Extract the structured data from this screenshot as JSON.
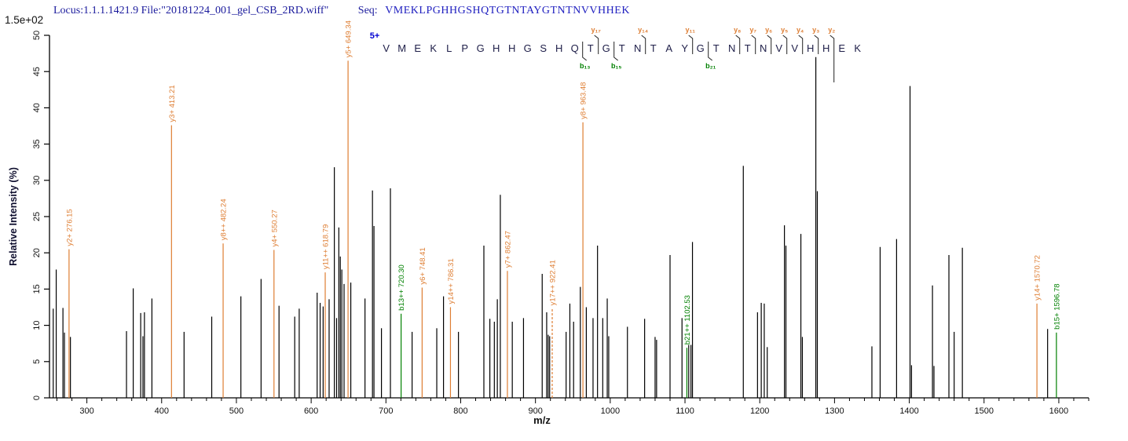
{
  "header": {
    "locus_text": "Locus:1.1.1.1421.9 File:\"20181224_001_gel_CSB_2RD.wiff\"",
    "seq_label": "Seq:",
    "seq_value": "VMEKLPGHHGSHQTGTNTAYGTNTNVVHHEK"
  },
  "chart_data": {
    "type": "bar",
    "subtype": "mass-spectrum-stick-plot",
    "title": "",
    "xlabel": "m/z",
    "ylabel": "Relative  Intensity (%)",
    "y_scale_note": "1.5e+02",
    "xlim": [
      250,
      1640
    ],
    "ylim": [
      0,
      50
    ],
    "x_tick_major_step": 100,
    "x_tick_minor_step": 20,
    "x_tick_label_start": 300,
    "x_tick_label_end": 1600,
    "y_tick_step": 5,
    "grid": false,
    "charge_state": "5+",
    "colors": {
      "y_ion": "#DE7E33",
      "b_ion": "#008000",
      "peak": "#000000",
      "axis": "#000000",
      "header_blue": "#1a1a9c",
      "seq_blue": "#2121c0",
      "charge_blue": "#0000d0",
      "residue": "#20204a"
    },
    "sequence": {
      "residues": [
        "V",
        "M",
        "E",
        "K",
        "L",
        "P",
        "G",
        "H",
        "H",
        "G",
        "S",
        "H",
        "Q",
        "T",
        "G",
        "T",
        "N",
        "T",
        "A",
        "Y",
        "G",
        "T",
        "N",
        "T",
        "N",
        "V",
        "V",
        "H",
        "H",
        "E",
        "K"
      ],
      "cuts": [
        {
          "ion": "y",
          "num": 17,
          "after": 14
        },
        {
          "ion": "y",
          "num": 14,
          "after": 17
        },
        {
          "ion": "y",
          "num": 11,
          "after": 20
        },
        {
          "ion": "y",
          "num": 8,
          "after": 23
        },
        {
          "ion": "y",
          "num": 7,
          "after": 24
        },
        {
          "ion": "y",
          "num": 6,
          "after": 25
        },
        {
          "ion": "y",
          "num": 5,
          "after": 26
        },
        {
          "ion": "y",
          "num": 4,
          "after": 27
        },
        {
          "ion": "y",
          "num": 3,
          "after": 28
        },
        {
          "ion": "y",
          "num": 2,
          "after": 29,
          "long": true
        },
        {
          "ion": "b",
          "num": 13,
          "after": 13
        },
        {
          "ion": "b",
          "num": 15,
          "after": 15
        },
        {
          "ion": "b",
          "num": 21,
          "after": 21
        }
      ]
    },
    "peaks": [
      {
        "mz": 255,
        "i": 12.3
      },
      {
        "mz": 259,
        "i": 17.7
      },
      {
        "mz": 268,
        "i": 12.4
      },
      {
        "mz": 270,
        "i": 9.0
      },
      {
        "mz": 276.15,
        "i": 20.5,
        "ion": "y",
        "label": "y2+ 276.15"
      },
      {
        "mz": 278,
        "i": 8.4
      },
      {
        "mz": 353,
        "i": 9.2
      },
      {
        "mz": 362,
        "i": 15.1
      },
      {
        "mz": 372,
        "i": 11.7
      },
      {
        "mz": 375,
        "i": 8.5
      },
      {
        "mz": 377,
        "i": 11.8
      },
      {
        "mz": 387,
        "i": 13.7
      },
      {
        "mz": 413.21,
        "i": 37.6,
        "ion": "y",
        "label": "y3+ 413.21"
      },
      {
        "mz": 430,
        "i": 9.1
      },
      {
        "mz": 467,
        "i": 11.2
      },
      {
        "mz": 482.24,
        "i": 21.3,
        "ion": "y",
        "label": "y8++ 482.24"
      },
      {
        "mz": 506,
        "i": 14.0
      },
      {
        "mz": 533,
        "i": 16.4
      },
      {
        "mz": 550.27,
        "i": 20.4,
        "ion": "y",
        "label": "y4+ 550.27"
      },
      {
        "mz": 557,
        "i": 12.7
      },
      {
        "mz": 578,
        "i": 11.2
      },
      {
        "mz": 584,
        "i": 12.3
      },
      {
        "mz": 608,
        "i": 14.5
      },
      {
        "mz": 612,
        "i": 13.1
      },
      {
        "mz": 616,
        "i": 12.6
      },
      {
        "mz": 618.79,
        "i": 17.3,
        "ion": "y",
        "label": "y11++ 618.79"
      },
      {
        "mz": 624,
        "i": 13.6
      },
      {
        "mz": 631,
        "i": 31.8
      },
      {
        "mz": 634,
        "i": 11.0
      },
      {
        "mz": 637,
        "i": 23.5
      },
      {
        "mz": 639,
        "i": 19.5
      },
      {
        "mz": 641,
        "i": 17.7
      },
      {
        "mz": 644,
        "i": 15.7
      },
      {
        "mz": 649.34,
        "i": 46.5,
        "ion": "y",
        "label": "y5+ 649.34"
      },
      {
        "mz": 653,
        "i": 15.9
      },
      {
        "mz": 672,
        "i": 13.7
      },
      {
        "mz": 682,
        "i": 28.6
      },
      {
        "mz": 684,
        "i": 23.7
      },
      {
        "mz": 694,
        "i": 9.6
      },
      {
        "mz": 706,
        "i": 28.9
      },
      {
        "mz": 720.3,
        "i": 11.6,
        "ion": "b",
        "label": "b13++ 720.30"
      },
      {
        "mz": 735,
        "i": 9.1
      },
      {
        "mz": 748.41,
        "i": 15.2,
        "ion": "y",
        "label": "y6+ 748.41"
      },
      {
        "mz": 768,
        "i": 9.6
      },
      {
        "mz": 777,
        "i": 14.0
      },
      {
        "mz": 786.31,
        "i": 12.5,
        "ion": "y",
        "label": "y14++ 786.31"
      },
      {
        "mz": 797,
        "i": 9.1
      },
      {
        "mz": 831,
        "i": 21.0
      },
      {
        "mz": 839,
        "i": 10.9
      },
      {
        "mz": 845,
        "i": 10.5
      },
      {
        "mz": 849,
        "i": 13.6
      },
      {
        "mz": 853,
        "i": 28.0
      },
      {
        "mz": 862.47,
        "i": 17.5,
        "ion": "y",
        "label": "y7+ 862.47"
      },
      {
        "mz": 869,
        "i": 10.5
      },
      {
        "mz": 884,
        "i": 11.0
      },
      {
        "mz": 909,
        "i": 17.1
      },
      {
        "mz": 915,
        "i": 11.8
      },
      {
        "mz": 917,
        "i": 8.7
      },
      {
        "mz": 919,
        "i": 8.5
      },
      {
        "mz": 922.41,
        "i": 12.3,
        "ion": "y",
        "label": "y17++ 922.41",
        "dashed": true
      },
      {
        "mz": 941,
        "i": 9.1
      },
      {
        "mz": 946,
        "i": 13.0
      },
      {
        "mz": 951,
        "i": 10.5
      },
      {
        "mz": 960,
        "i": 15.3
      },
      {
        "mz": 963.48,
        "i": 38.0,
        "ion": "y",
        "label": "y8+ 963.48"
      },
      {
        "mz": 968,
        "i": 12.5
      },
      {
        "mz": 977,
        "i": 11.0
      },
      {
        "mz": 983,
        "i": 21.0
      },
      {
        "mz": 990,
        "i": 11.0
      },
      {
        "mz": 996,
        "i": 13.7
      },
      {
        "mz": 998,
        "i": 8.5
      },
      {
        "mz": 1023,
        "i": 9.8
      },
      {
        "mz": 1046,
        "i": 10.9
      },
      {
        "mz": 1060,
        "i": 8.4
      },
      {
        "mz": 1062,
        "i": 8.0
      },
      {
        "mz": 1080,
        "i": 19.7
      },
      {
        "mz": 1096,
        "i": 11.0
      },
      {
        "mz": 1102.53,
        "i": 6.9,
        "ion": "b",
        "label": "b21++ 1102.53"
      },
      {
        "mz": 1105,
        "i": 7.3
      },
      {
        "mz": 1108,
        "i": 7.3
      },
      {
        "mz": 1110,
        "i": 21.5
      },
      {
        "mz": 1178,
        "i": 32.0
      },
      {
        "mz": 1197,
        "i": 11.8
      },
      {
        "mz": 1202,
        "i": 13.1
      },
      {
        "mz": 1206,
        "i": 13.0
      },
      {
        "mz": 1210,
        "i": 7.0
      },
      {
        "mz": 1233,
        "i": 23.8
      },
      {
        "mz": 1235,
        "i": 21.0
      },
      {
        "mz": 1255,
        "i": 22.6
      },
      {
        "mz": 1257,
        "i": 8.4
      },
      {
        "mz": 1275,
        "i": 47.0
      },
      {
        "mz": 1277,
        "i": 28.5
      },
      {
        "mz": 1350,
        "i": 7.1
      },
      {
        "mz": 1361,
        "i": 20.8
      },
      {
        "mz": 1383,
        "i": 21.9
      },
      {
        "mz": 1401,
        "i": 43.0
      },
      {
        "mz": 1403,
        "i": 4.5
      },
      {
        "mz": 1431,
        "i": 15.5
      },
      {
        "mz": 1433,
        "i": 4.4
      },
      {
        "mz": 1453,
        "i": 19.7
      },
      {
        "mz": 1460,
        "i": 9.1
      },
      {
        "mz": 1471,
        "i": 20.7
      },
      {
        "mz": 1570.72,
        "i": 13.0,
        "ion": "y",
        "label": "y14+ 1570.72"
      },
      {
        "mz": 1585,
        "i": 9.5
      },
      {
        "mz": 1596.78,
        "i": 9.0,
        "ion": "b",
        "label": "b15+ 1596.78"
      }
    ]
  }
}
